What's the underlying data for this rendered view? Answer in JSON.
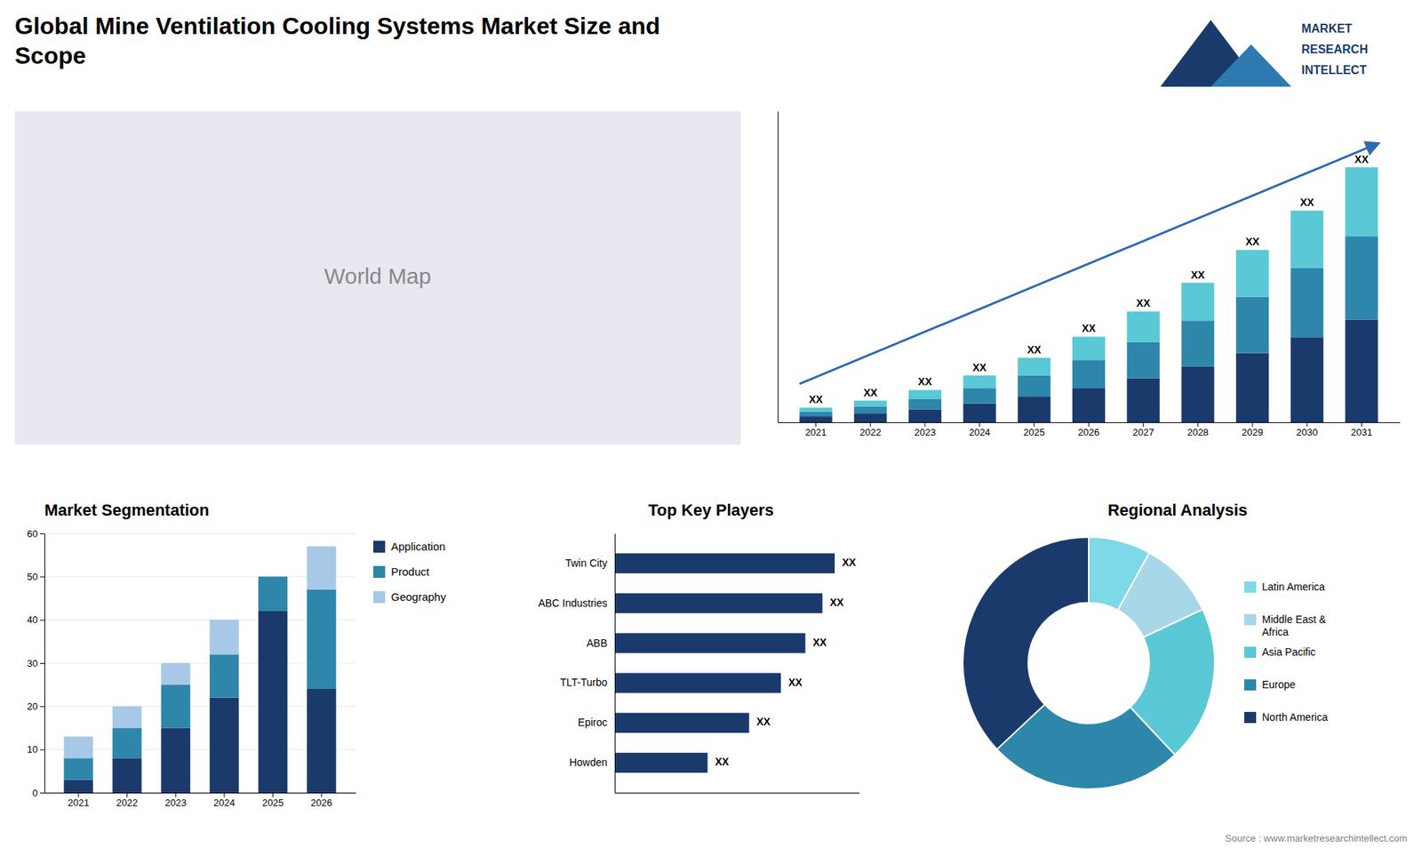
{
  "title": "Global Mine Ventilation Cooling Systems Market Size and\nScope",
  "annotations": [
    "MARKET",
    "RESEARCH",
    "INTELLECT",
    "Source : www.marketresearchintellect.com"
  ],
  "chart_data": [
    {
      "type": "map",
      "annotations": [
        "World Map"
      ]
    },
    {
      "type": "bar",
      "stacked": true,
      "categories": [
        "2021",
        "2022",
        "2023",
        "2024",
        "2025",
        "2026",
        "2027",
        "2028",
        "2029",
        "2030",
        "2031"
      ],
      "series": [
        {
          "color": "#1a3a6b",
          "values": [
            1.0,
            1.5,
            2.2,
            3.2,
            4.4,
            5.8,
            7.5,
            9.5,
            11.8,
            14.5,
            17.5
          ]
        },
        {
          "color": "#2e86ab",
          "values": [
            0.8,
            1.2,
            1.8,
            2.6,
            3.6,
            4.8,
            6.2,
            7.8,
            9.6,
            11.8,
            14.2
          ]
        },
        {
          "color": "#5bc8d5",
          "values": [
            0.7,
            1.0,
            1.5,
            2.2,
            3.0,
            4.0,
            5.2,
            6.5,
            8.0,
            9.8,
            11.8
          ],
          "value_labels": [
            "XX",
            "XX",
            "XX",
            "XX",
            "XX",
            "XX",
            "XX",
            "XX",
            "XX",
            "XX",
            "XX"
          ]
        }
      ],
      "ylim": [
        0,
        53.07
      ],
      "yticks": [],
      "tick_labels": "x"
    },
    {
      "type": "bar",
      "stacked": true,
      "title": "Market Segmentation",
      "categories": [
        "2021",
        "2022",
        "2023",
        "2024",
        "2025",
        "2026"
      ],
      "series": [
        {
          "name": "Application",
          "color": "#1a3a6b",
          "values": [
            3,
            8,
            15,
            22,
            42,
            24
          ]
        },
        {
          "name": "Product",
          "color": "#2e86ab",
          "values": [
            5,
            7,
            10,
            10,
            8,
            23
          ]
        },
        {
          "name": "Geography",
          "color": "#a8c8e8",
          "values": [
            5,
            5,
            5,
            8,
            0,
            10
          ]
        }
      ],
      "ylim": [
        0,
        60
      ],
      "yticks": [
        0,
        10,
        20,
        30,
        40,
        50,
        60
      ],
      "grid": true,
      "legend": "right"
    },
    {
      "type": "bar",
      "orientation": "horizontal",
      "title": "Top Key Players",
      "categories": [
        "Twin City",
        "ABC Industries",
        "ABB",
        "TLT-Turbo",
        "Epiroc",
        "Howden"
      ],
      "values": [
        0.9,
        0.85,
        0.78,
        0.68,
        0.55,
        0.38
      ],
      "value_labels": [
        "XX",
        "XX",
        "XX",
        "XX",
        "XX",
        "XX"
      ],
      "color": "#1a3a6b",
      "xlim": [
        0,
        1
      ],
      "xticks": [],
      "tick_labels": "y"
    },
    {
      "type": "pie",
      "title": "Regional Analysis",
      "categories": [
        "Latin America",
        "Middle East &\nAfrica",
        "Asia Pacific",
        "Europe",
        "North America"
      ],
      "values": [
        8,
        10,
        20,
        25,
        37
      ],
      "colors": [
        "#7dd8e8",
        "#a8d8e8",
        "#5bc8d5",
        "#2e86ab",
        "#1a3a6b"
      ],
      "legend": "right"
    }
  ]
}
